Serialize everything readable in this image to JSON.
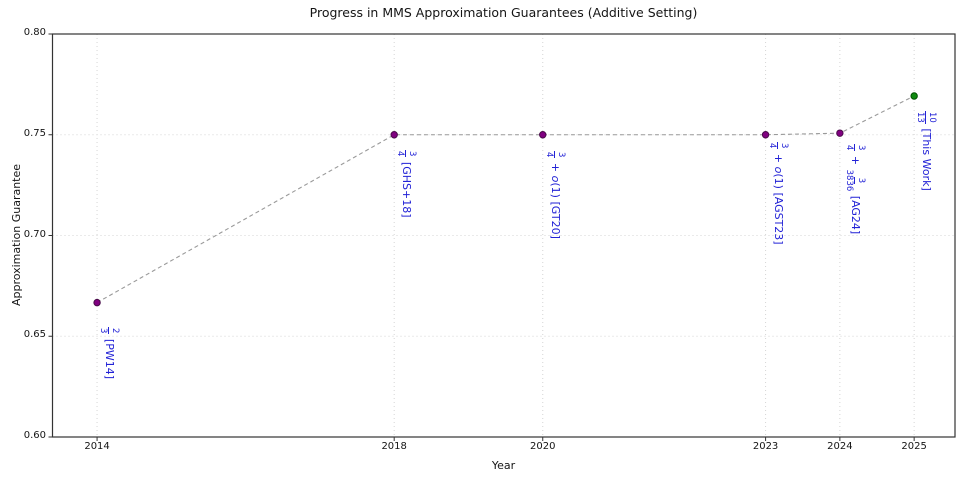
{
  "chart_data": {
    "type": "line",
    "title": "Progress in MMS Approximation Guarantees (Additive Setting)",
    "xlabel": "Year",
    "ylabel": "Approximation Guarantee",
    "xlim": [
      2013.4,
      2025.55
    ],
    "ylim": [
      0.6,
      0.8
    ],
    "xticks": [
      2014,
      2018,
      2020,
      2023,
      2024,
      2025
    ],
    "yticks": [
      0.6,
      0.65,
      0.7,
      0.75,
      0.8
    ],
    "ytick_labels": [
      "0.60",
      "0.65",
      "0.70",
      "0.75",
      "0.80"
    ],
    "grid": true,
    "legend": false,
    "line_style": "dashed",
    "line_color": "#9a9a9a",
    "annotation_color": "#2222d6",
    "points": [
      {
        "x": 2014,
        "y": 0.6667,
        "guarantee": "2/3",
        "reference": "PW14",
        "color": "#800080",
        "edge": "#4a0a4a",
        "label_offset": [
          23,
          23
        ],
        "label_tokens": [
          {
            "t": "frac",
            "n": "2",
            "d": "3"
          },
          {
            "t": "txt",
            "s": " [PW14]"
          }
        ]
      },
      {
        "x": 2018,
        "y": 0.75,
        "guarantee": "3/4",
        "reference": "GHS+18",
        "color": "#800080",
        "edge": "#4a0a4a",
        "label_offset": [
          23,
          14
        ],
        "label_tokens": [
          {
            "t": "frac",
            "n": "3",
            "d": "4"
          },
          {
            "t": "txt",
            "s": " [GHS+18]"
          }
        ]
      },
      {
        "x": 2020,
        "y": 0.75,
        "guarantee": "3/4 + o(1)",
        "reference": "GT20",
        "color": "#800080",
        "edge": "#4a0a4a",
        "label_offset": [
          23,
          15
        ],
        "label_tokens": [
          {
            "t": "frac",
            "n": "3",
            "d": "4"
          },
          {
            "t": "txt",
            "s": " + "
          },
          {
            "t": "it",
            "s": "o"
          },
          {
            "t": "txt",
            "s": "(1) [GT20]"
          }
        ]
      },
      {
        "x": 2023,
        "y": 0.75,
        "guarantee": "3/4 + o(1)",
        "reference": "AGST23",
        "color": "#800080",
        "edge": "#4a0a4a",
        "label_offset": [
          23,
          6
        ],
        "label_tokens": [
          {
            "t": "frac",
            "n": "3",
            "d": "4"
          },
          {
            "t": "txt",
            "s": " + "
          },
          {
            "t": "it",
            "s": "o"
          },
          {
            "t": "txt",
            "s": "(1) [AGST23]"
          }
        ]
      },
      {
        "x": 2024,
        "y": 0.75078,
        "guarantee": "3/4 + 3/3836",
        "reference": "AG24",
        "color": "#800080",
        "edge": "#4a0a4a",
        "label_offset": [
          26,
          10
        ],
        "label_tokens": [
          {
            "t": "frac",
            "n": "3",
            "d": "4"
          },
          {
            "t": "txt",
            "s": " + "
          },
          {
            "t": "frac",
            "n": "3",
            "d": "3836"
          },
          {
            "t": "txt",
            "s": " [AG24]"
          }
        ]
      },
      {
        "x": 2025,
        "y": 0.76923,
        "guarantee": "10/13",
        "reference": "This Work",
        "color": "#0f8a0f",
        "edge": "#005200",
        "label_offset": [
          23,
          14
        ],
        "label_tokens": [
          {
            "t": "frac",
            "n": "10",
            "d": "13"
          },
          {
            "t": "txt",
            "s": " [This Work]"
          }
        ]
      }
    ]
  }
}
